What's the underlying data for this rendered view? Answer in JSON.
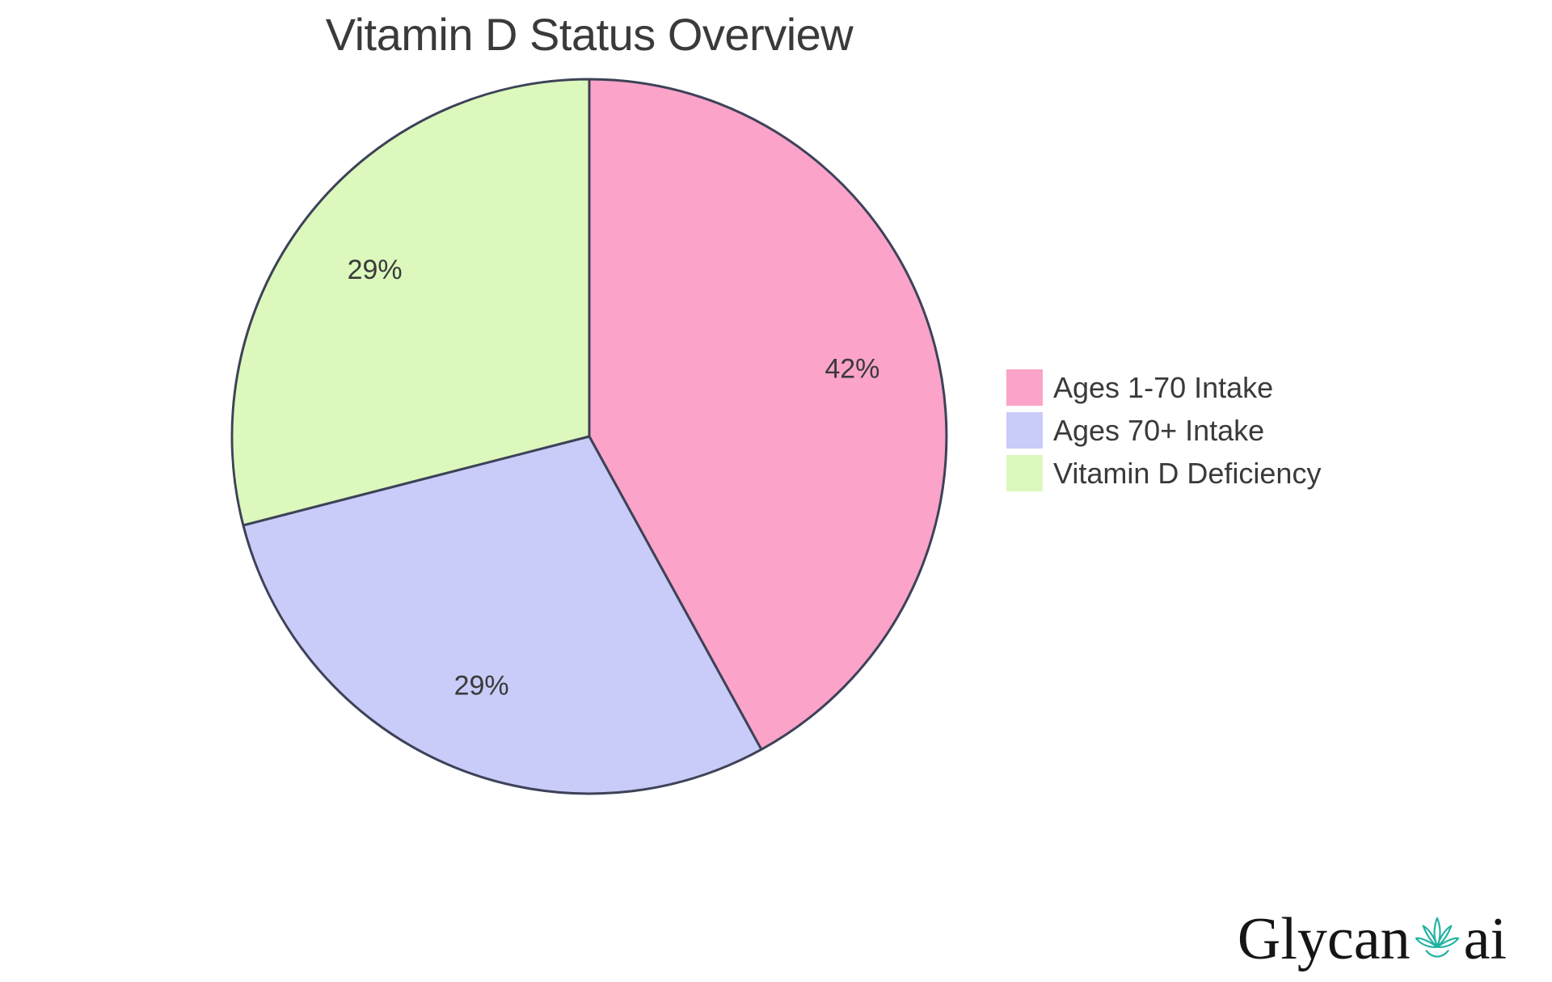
{
  "chart_data": {
    "type": "pie",
    "title": "Vitamin D Status Overview",
    "direction": "clockwise",
    "start_angle": "12 o'clock",
    "legend_position": "right",
    "outline_color": "#3D4258",
    "label_color": "#3a3a3a",
    "background_color": "#ffffff",
    "slices": [
      {
        "label": "Ages 1-70 Intake",
        "value": 42,
        "display": "42%",
        "color": "#FBA3C9"
      },
      {
        "label": "Ages 70+ Intake",
        "value": 29,
        "display": "29%",
        "color": "#C9CBF8"
      },
      {
        "label": "Vitamin D Deficiency",
        "value": 29,
        "display": "29%",
        "color": "#DCF8BD"
      }
    ]
  },
  "branding": {
    "wordmark_left": "Glycan",
    "wordmark_right": "ai",
    "icon": "aloe-plant-icon",
    "icon_color": "#1FB2A1",
    "text_color": "#151515"
  }
}
